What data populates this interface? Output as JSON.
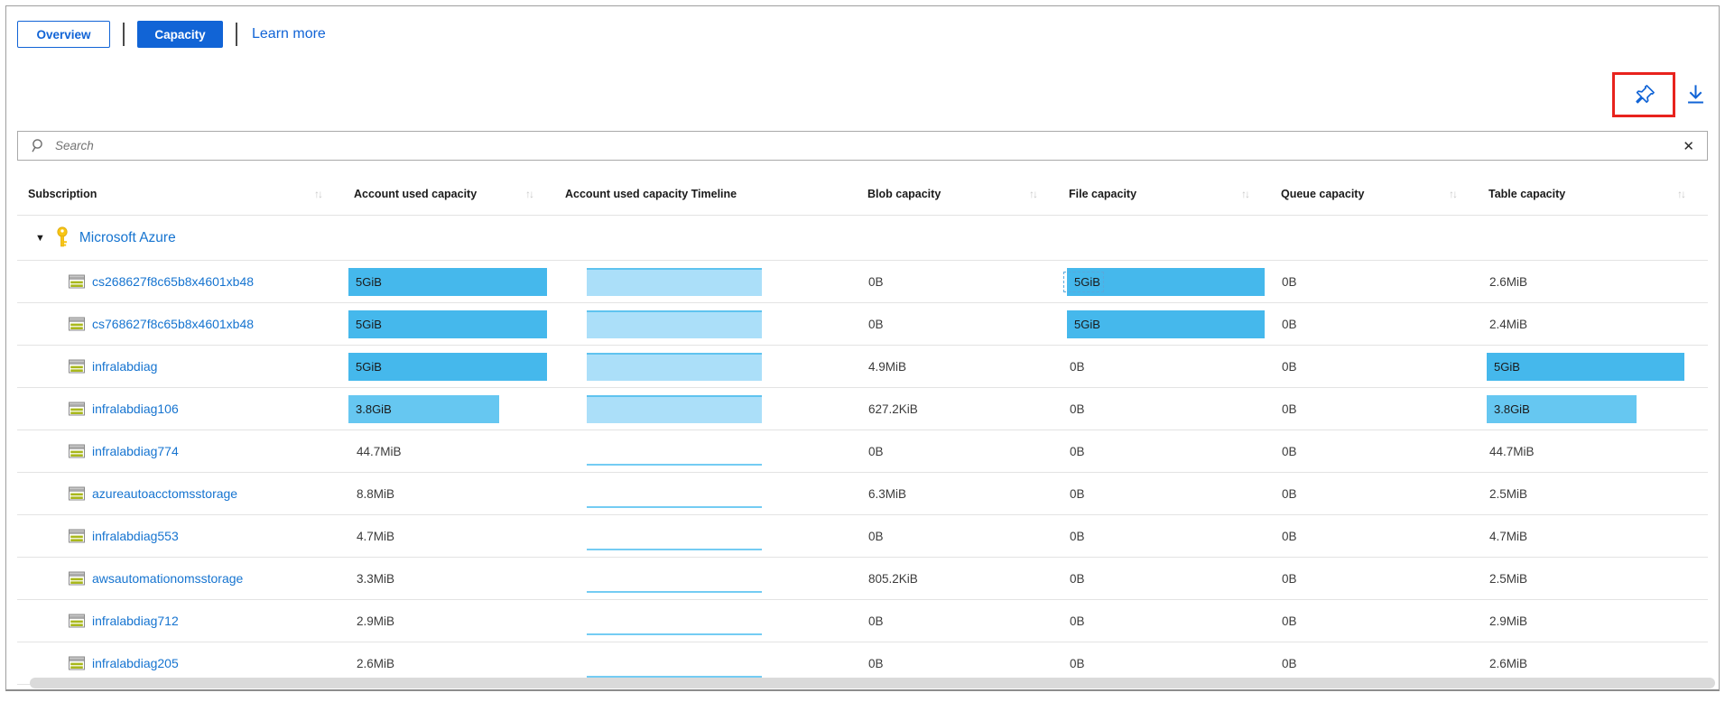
{
  "toolbar": {
    "overview_label": "Overview",
    "capacity_label": "Capacity",
    "learn_more_label": "Learn more"
  },
  "actions": {
    "pin_icon": "pin-icon",
    "download_icon": "download-icon"
  },
  "search": {
    "placeholder": "Search",
    "clear_icon": "✕",
    "search_icon": "search-icon"
  },
  "icons": {
    "sort": "↑↓",
    "expand": "▼",
    "key": "key-icon",
    "storage_account": "storage-account-icon"
  },
  "colors": {
    "accent_blue": "#1164d6",
    "bar_blue": "#45b8ec",
    "bar_blue_light": "#66c7f1",
    "timeline_fill": "#abdff9",
    "timeline_line": "#5fc3ef",
    "link_blue": "#1674d0",
    "highlight_red": "#e8231d",
    "key_gold": "#f8c514"
  },
  "table": {
    "columns": [
      {
        "label": "Subscription",
        "sortable": true
      },
      {
        "label": "Account used capacity",
        "sortable": true
      },
      {
        "label": "Account used capacity Timeline",
        "sortable": false
      },
      {
        "label": "Blob capacity",
        "sortable": true
      },
      {
        "label": "File capacity",
        "sortable": true
      },
      {
        "label": "Queue capacity",
        "sortable": true
      },
      {
        "label": "Table capacity",
        "sortable": true
      }
    ],
    "group": {
      "label": "Microsoft Azure",
      "expanded": true
    },
    "rows": [
      {
        "name": "cs268627f8c65b8x4601xb48",
        "account_used": {
          "value": "5GiB",
          "bar": 1
        },
        "timeline": "high",
        "blob": {
          "value": "0B"
        },
        "file": {
          "value": "5GiB",
          "bar": 1,
          "focused": true
        },
        "queue": {
          "value": "0B"
        },
        "table": {
          "value": "2.6MiB"
        }
      },
      {
        "name": "cs768627f8c65b8x4601xb48",
        "account_used": {
          "value": "5GiB",
          "bar": 1
        },
        "timeline": "high",
        "blob": {
          "value": "0B"
        },
        "file": {
          "value": "5GiB",
          "bar": 1
        },
        "queue": {
          "value": "0B"
        },
        "table": {
          "value": "2.4MiB"
        }
      },
      {
        "name": "infralabdiag",
        "account_used": {
          "value": "5GiB",
          "bar": 1
        },
        "timeline": "high",
        "blob": {
          "value": "4.9MiB"
        },
        "file": {
          "value": "0B"
        },
        "queue": {
          "value": "0B"
        },
        "table": {
          "value": "5GiB",
          "bar": 1
        }
      },
      {
        "name": "infralabdiag106",
        "account_used": {
          "value": "3.8GiB",
          "bar": 0.76
        },
        "timeline": "high",
        "blob": {
          "value": "627.2KiB"
        },
        "file": {
          "value": "0B"
        },
        "queue": {
          "value": "0B"
        },
        "table": {
          "value": "3.8GiB",
          "bar": 0.76
        }
      },
      {
        "name": "infralabdiag774",
        "account_used": {
          "value": "44.7MiB"
        },
        "timeline": "low",
        "blob": {
          "value": "0B"
        },
        "file": {
          "value": "0B"
        },
        "queue": {
          "value": "0B"
        },
        "table": {
          "value": "44.7MiB"
        }
      },
      {
        "name": "azureautoacctomsstorage",
        "account_used": {
          "value": "8.8MiB"
        },
        "timeline": "low",
        "blob": {
          "value": "6.3MiB"
        },
        "file": {
          "value": "0B"
        },
        "queue": {
          "value": "0B"
        },
        "table": {
          "value": "2.5MiB"
        }
      },
      {
        "name": "infralabdiag553",
        "account_used": {
          "value": "4.7MiB"
        },
        "timeline": "low",
        "blob": {
          "value": "0B"
        },
        "file": {
          "value": "0B"
        },
        "queue": {
          "value": "0B"
        },
        "table": {
          "value": "4.7MiB"
        }
      },
      {
        "name": "awsautomationomsstorage",
        "account_used": {
          "value": "3.3MiB"
        },
        "timeline": "low",
        "blob": {
          "value": "805.2KiB"
        },
        "file": {
          "value": "0B"
        },
        "queue": {
          "value": "0B"
        },
        "table": {
          "value": "2.5MiB"
        }
      },
      {
        "name": "infralabdiag712",
        "account_used": {
          "value": "2.9MiB"
        },
        "timeline": "low",
        "blob": {
          "value": "0B"
        },
        "file": {
          "value": "0B"
        },
        "queue": {
          "value": "0B"
        },
        "table": {
          "value": "2.9MiB"
        }
      },
      {
        "name": "infralabdiag205",
        "account_used": {
          "value": "2.6MiB"
        },
        "timeline": "low",
        "blob": {
          "value": "0B"
        },
        "file": {
          "value": "0B"
        },
        "queue": {
          "value": "0B"
        },
        "table": {
          "value": "2.6MiB"
        }
      }
    ]
  }
}
